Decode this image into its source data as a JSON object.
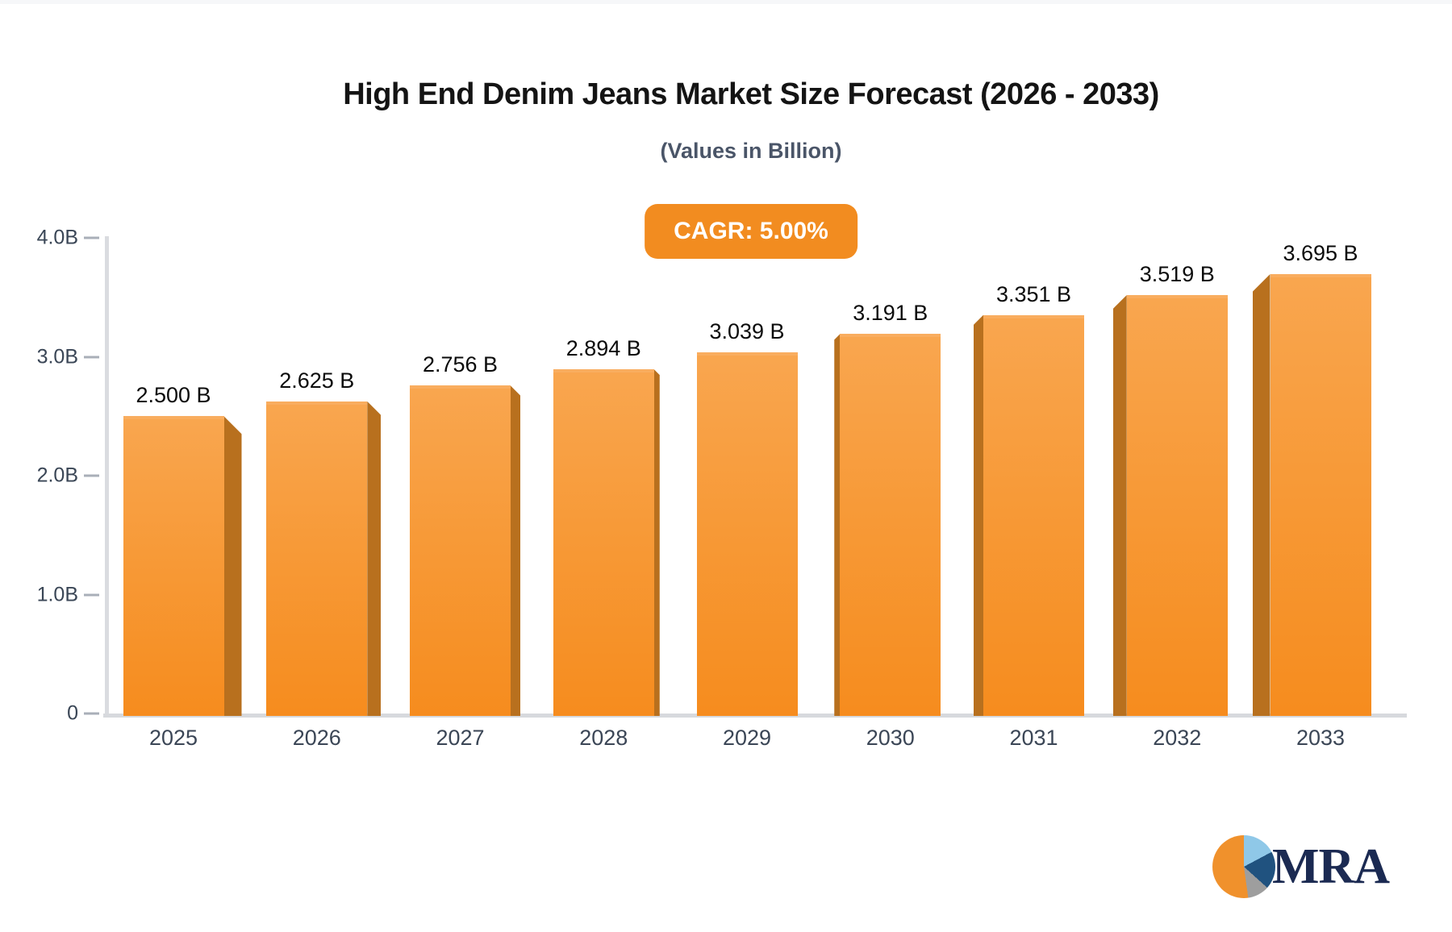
{
  "header": {
    "title": "High End Denim Jeans Market Size Forecast (2026 - 2033)",
    "subtitle": "(Values in Billion)",
    "cagr_label": "CAGR: 5.00%"
  },
  "chart_data": {
    "type": "bar",
    "title": "High End Denim Jeans Market Size Forecast (2026 - 2033)",
    "subtitle": "(Values in Billion)",
    "annotation": "CAGR: 5.00%",
    "categories": [
      "2025",
      "2026",
      "2027",
      "2028",
      "2029",
      "2030",
      "2031",
      "2032",
      "2033"
    ],
    "values": [
      2.5,
      2.625,
      2.756,
      2.894,
      3.039,
      3.191,
      3.351,
      3.519,
      3.695
    ],
    "value_labels": [
      "2.500 B",
      "2.625 B",
      "2.756 B",
      "2.894 B",
      "3.039 B",
      "3.191 B",
      "3.351 B",
      "3.519 B",
      "3.695 B"
    ],
    "xlabel": "",
    "ylabel": "",
    "ylim": [
      0,
      4.0
    ],
    "y_ticks": [
      "0",
      "1.0B",
      "2.0B",
      "3.0B",
      "4.0B"
    ],
    "grid": false,
    "legend": false,
    "bar_color": "#f79a38",
    "bar_side_color": "#b8701e",
    "style": "3d-column"
  },
  "colors": {
    "accent_orange": "#f28c20",
    "bar_top": "#f9a64f",
    "bar_bottom": "#f68c1e",
    "bar_side": "#b8701e",
    "axis_line": "#dadce0",
    "tick_text": "#3a4656",
    "value_text": "#0b0b0b",
    "title_text": "#141414",
    "subtitle_text": "#4a5568",
    "logo_navy": "#1b2a52",
    "logo_blue": "#8fc8e8",
    "logo_gray": "#9e9e9e",
    "logo_orange": "#f0912c"
  },
  "logo": {
    "text": "MRA"
  }
}
